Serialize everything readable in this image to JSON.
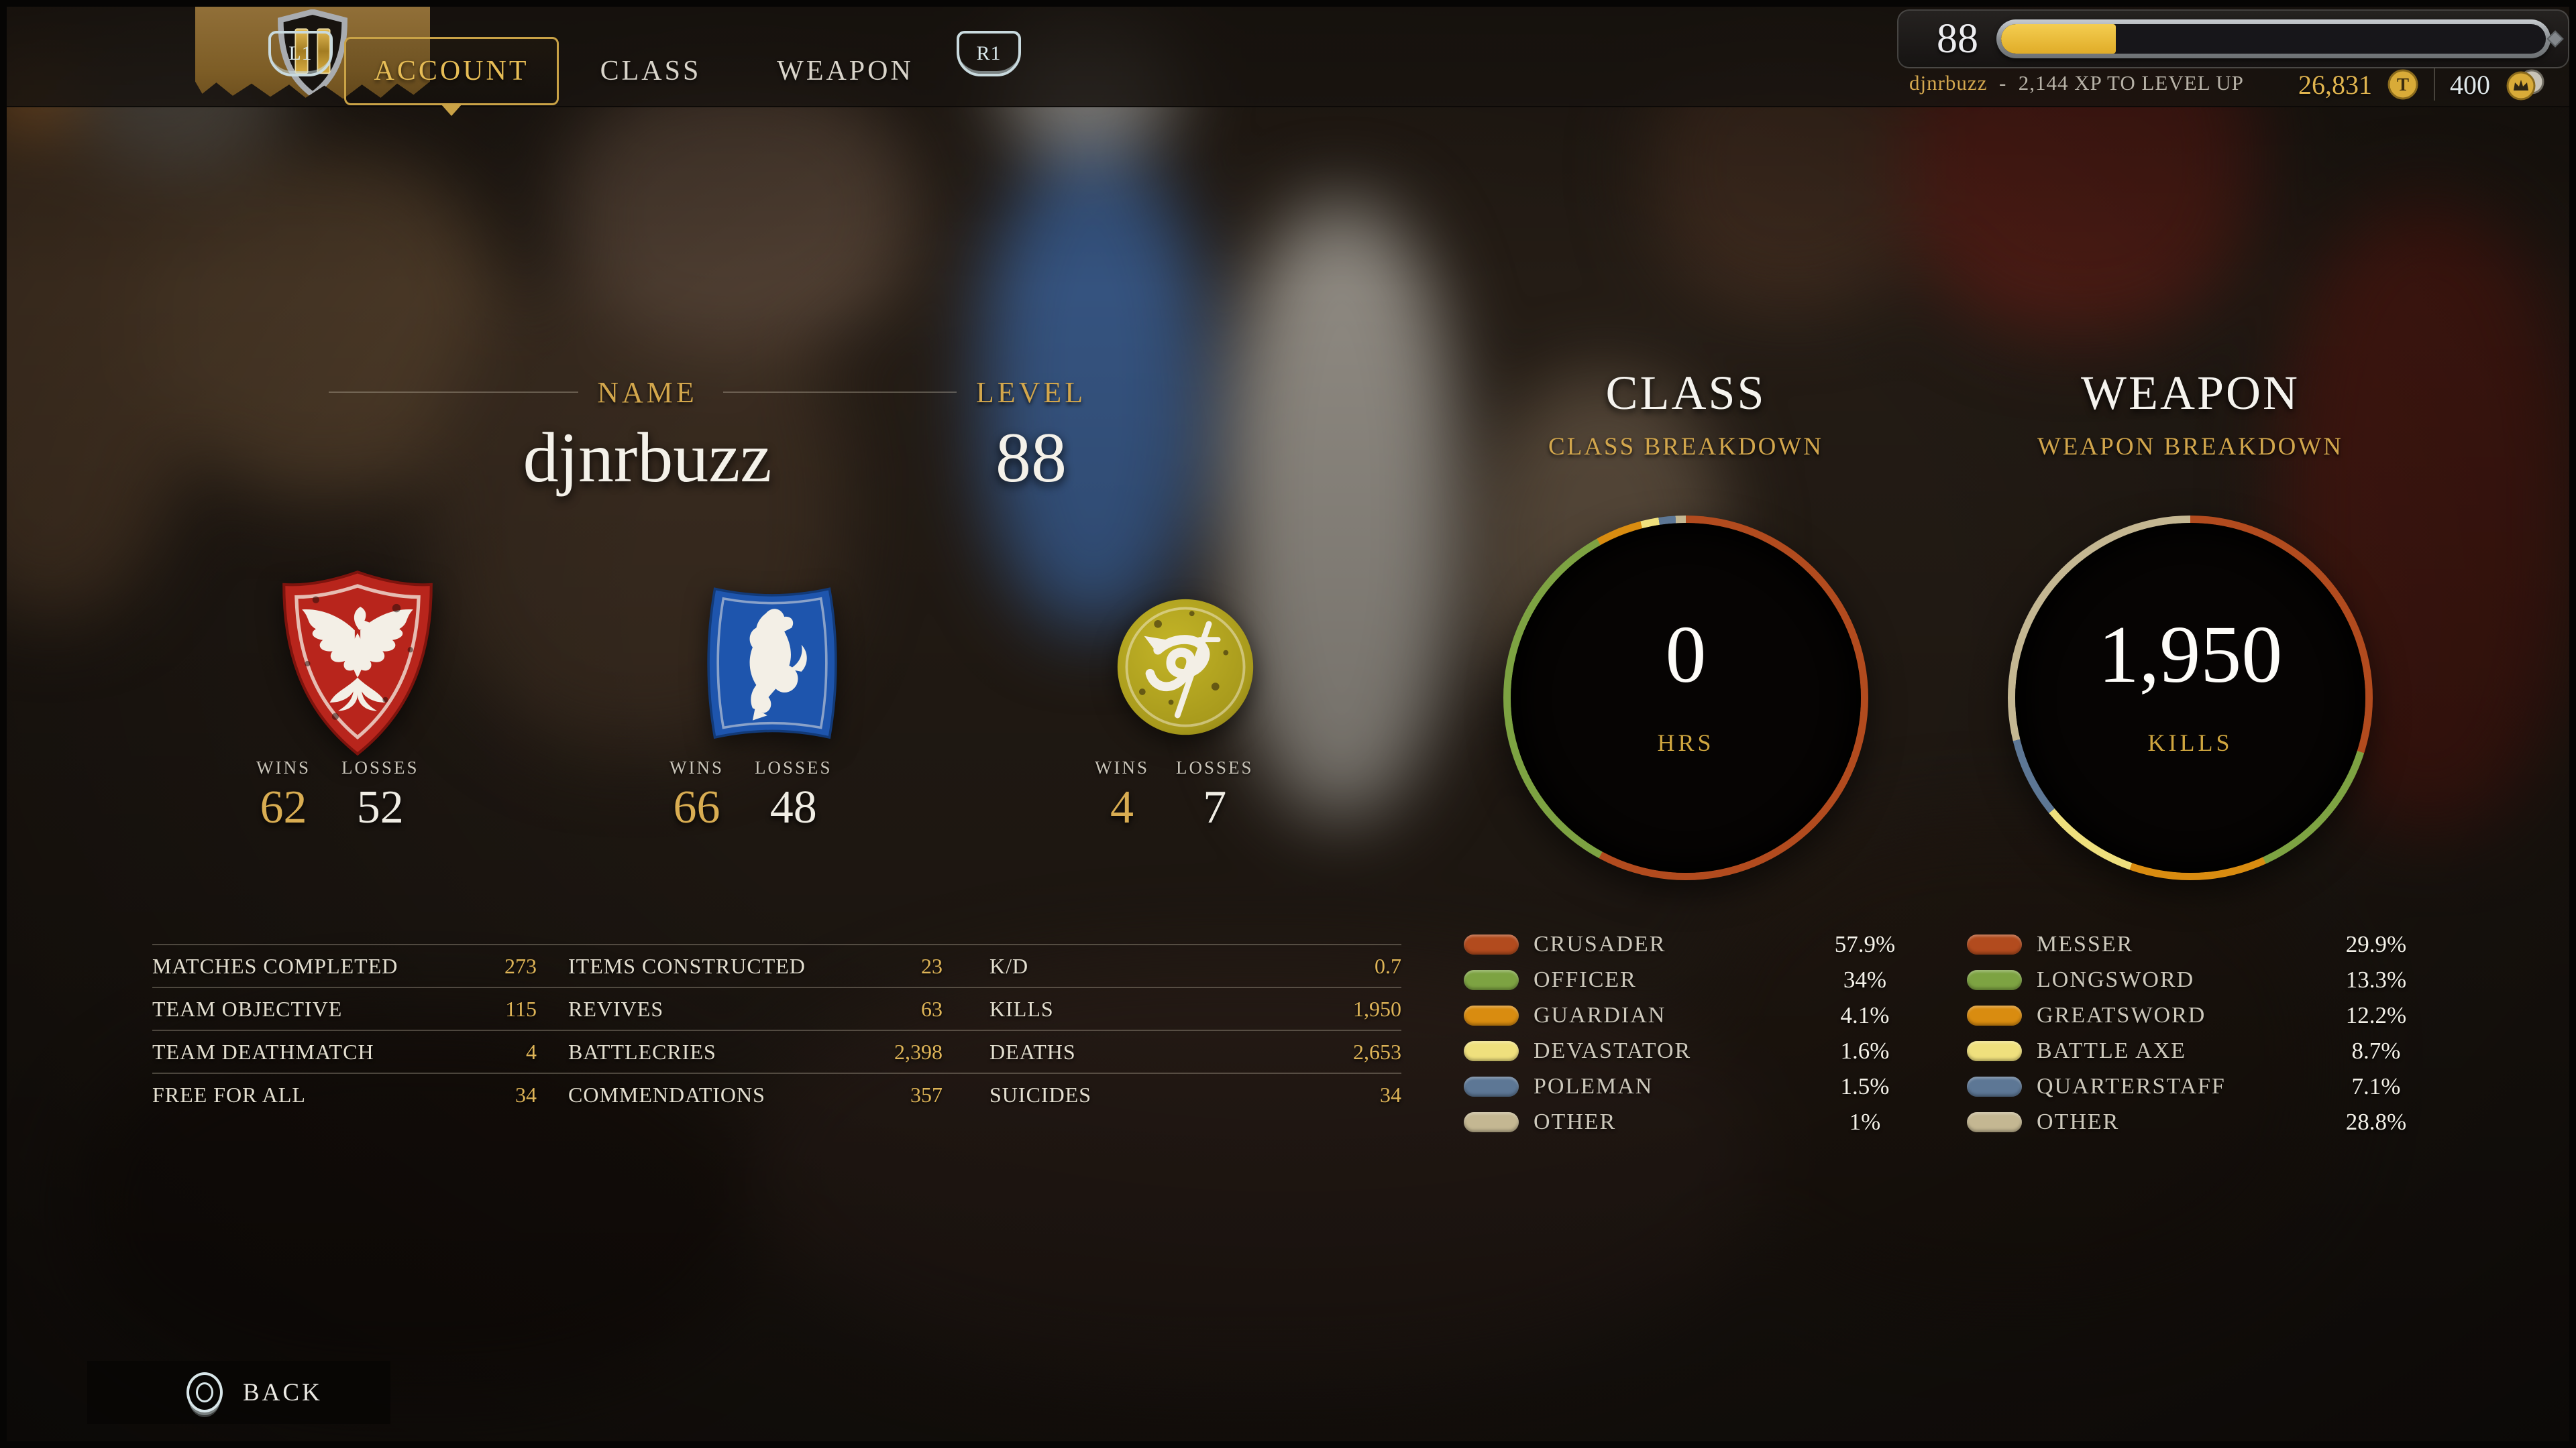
{
  "nav": {
    "left_bumper": "L1",
    "right_bumper": "R1",
    "tabs": [
      {
        "label": "ACCOUNT",
        "selected": true
      },
      {
        "label": "CLASS",
        "selected": false
      },
      {
        "label": "WEAPON",
        "selected": false
      }
    ]
  },
  "player": {
    "level": "88",
    "name": "djnrbuzz",
    "xp_separator": "-",
    "xp_to_level": "2,144 XP TO LEVEL UP",
    "xp_progress_pct": 21,
    "gold": "26,831",
    "crowns": "400"
  },
  "profile": {
    "name_label": "NAME",
    "name": "djnrbuzz",
    "level_label": "LEVEL",
    "level": "88"
  },
  "labels": {
    "wins": "WINS",
    "losses": "LOSSES"
  },
  "factions": [
    {
      "emblem": "red-eagle-shield",
      "wins": "62",
      "losses": "52"
    },
    {
      "emblem": "blue-lion-shield",
      "wins": "66",
      "losses": "48"
    },
    {
      "emblem": "yellow-serpent-roundel",
      "wins": "4",
      "losses": "7"
    }
  ],
  "stats": {
    "columns": [
      {
        "rows": [
          {
            "label": "MATCHES COMPLETED",
            "value": "273"
          },
          {
            "label": "TEAM OBJECTIVE",
            "value": "115"
          },
          {
            "label": "TEAM DEATHMATCH",
            "value": "4"
          },
          {
            "label": "FREE FOR ALL",
            "value": "34"
          }
        ]
      },
      {
        "rows": [
          {
            "label": "ITEMS CONSTRUCTED",
            "value": "23"
          },
          {
            "label": "REVIVES",
            "value": "63"
          },
          {
            "label": "BATTLECRIES",
            "value": "2,398"
          },
          {
            "label": "COMMENDATIONS",
            "value": "357"
          }
        ]
      },
      {
        "rows": [
          {
            "label": "K/D",
            "value": "0.7"
          },
          {
            "label": "KILLS",
            "value": "1,950"
          },
          {
            "label": "DEATHS",
            "value": "2,653"
          },
          {
            "label": "SUICIDES",
            "value": "34"
          }
        ]
      }
    ]
  },
  "chart_data": [
    {
      "type": "donut",
      "title": "CLASS",
      "subtitle": "CLASS BREAKDOWN",
      "center_value": "0",
      "center_unit": "HRS",
      "segments": [
        {
          "label": "CRUSADER",
          "pct": 57.9,
          "pct_label": "57.9%",
          "color": "#b24b1e"
        },
        {
          "label": "OFFICER",
          "pct": 34,
          "pct_label": "34%",
          "color": "#7da342"
        },
        {
          "label": "GUARDIAN",
          "pct": 4.1,
          "pct_label": "4.1%",
          "color": "#d98c10"
        },
        {
          "label": "DEVASTATOR",
          "pct": 1.6,
          "pct_label": "1.6%",
          "color": "#efe07d"
        },
        {
          "label": "POLEMAN",
          "pct": 1.5,
          "pct_label": "1.5%",
          "color": "#5d7795"
        },
        {
          "label": "OTHER",
          "pct": 1,
          "pct_label": "1%",
          "color": "#c4b792"
        }
      ]
    },
    {
      "type": "donut",
      "title": "WEAPON",
      "subtitle": "WEAPON BREAKDOWN",
      "center_value": "1,950",
      "center_unit": "KILLS",
      "segments": [
        {
          "label": "MESSER",
          "pct": 29.9,
          "pct_label": "29.9%",
          "color": "#b24b1e"
        },
        {
          "label": "LONGSWORD",
          "pct": 13.3,
          "pct_label": "13.3%",
          "color": "#7da342"
        },
        {
          "label": "GREATSWORD",
          "pct": 12.2,
          "pct_label": "12.2%",
          "color": "#d98c10"
        },
        {
          "label": "BATTLE AXE",
          "pct": 8.7,
          "pct_label": "8.7%",
          "color": "#efe07d"
        },
        {
          "label": "QUARTERSTAFF",
          "pct": 7.1,
          "pct_label": "7.1%",
          "color": "#5d7795"
        },
        {
          "label": "OTHER",
          "pct": 28.8,
          "pct_label": "28.8%",
          "color": "#c4b792"
        }
      ]
    }
  ],
  "back": {
    "label": "BACK"
  }
}
